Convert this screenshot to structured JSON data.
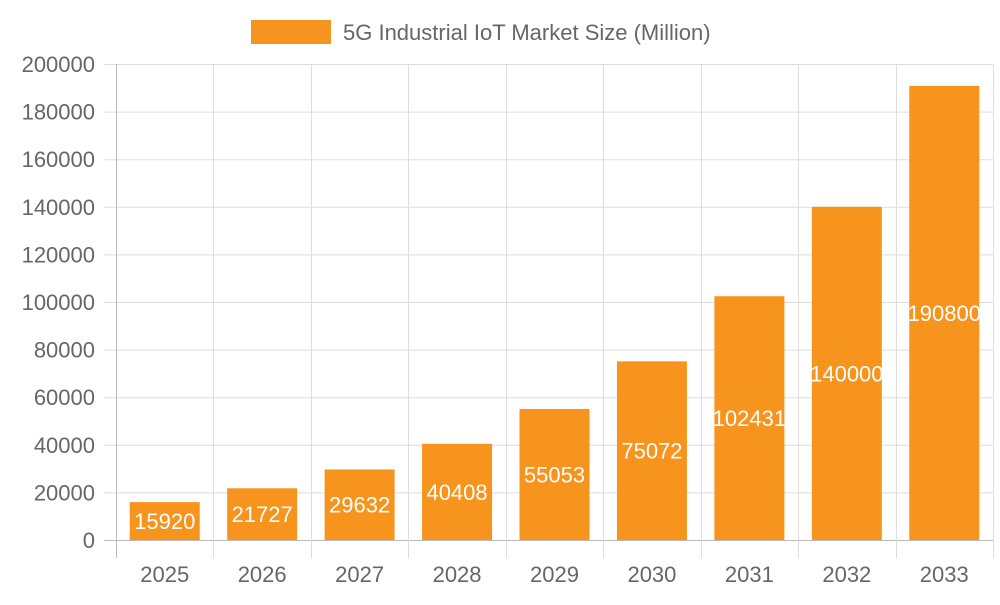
{
  "chart_data": {
    "type": "bar",
    "title": "",
    "xlabel": "",
    "ylabel": "",
    "categories": [
      "2025",
      "2026",
      "2027",
      "2028",
      "2029",
      "2030",
      "2031",
      "2032",
      "2033"
    ],
    "series": [
      {
        "name": "5G Industrial IoT Market Size (Million)",
        "values": [
          15920,
          21727,
          29632,
          40408,
          55053,
          75072,
          102431,
          140000,
          190800
        ],
        "color": "#f7941e"
      }
    ],
    "ylim": [
      0,
      200000
    ],
    "yticks": [
      0,
      20000,
      40000,
      60000,
      80000,
      100000,
      120000,
      140000,
      160000,
      180000,
      200000
    ],
    "grid": true,
    "legend": "top",
    "data_labels": true
  }
}
